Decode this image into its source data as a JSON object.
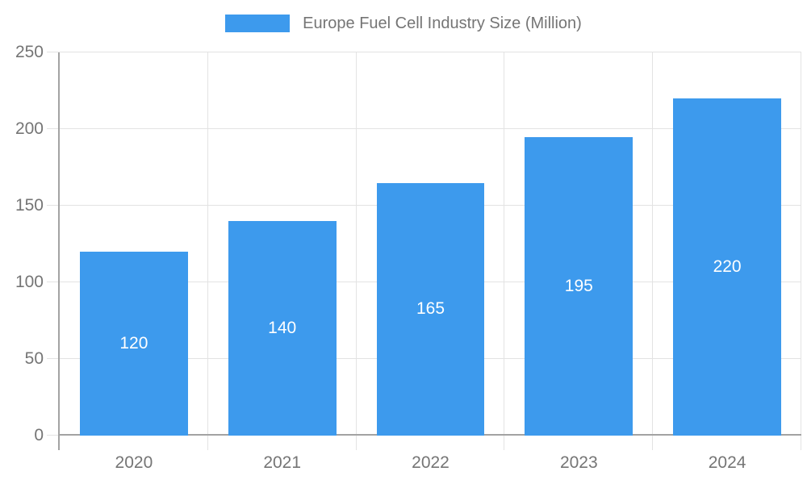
{
  "legend": {
    "label": "Europe Fuel Cell Industry Size (Million)"
  },
  "colors": {
    "bar": "#3d9aed",
    "grid": "#e3e3e3",
    "axis": "#a3a3a3",
    "tick_text": "#757575",
    "value_text": "#ffffff",
    "background": "#ffffff"
  },
  "chart_data": {
    "type": "bar",
    "title": "Europe Fuel Cell Industry Size (Million)",
    "categories": [
      "2020",
      "2021",
      "2022",
      "2023",
      "2024"
    ],
    "series": [
      {
        "name": "Europe Fuel Cell Industry Size (Million)",
        "values": [
          120,
          140,
          165,
          195,
          220
        ]
      }
    ],
    "values": [
      120,
      140,
      165,
      195,
      220
    ],
    "value_labels": [
      "120",
      "140",
      "165",
      "195",
      "220"
    ],
    "xlabel": "",
    "ylabel": "",
    "ylim": [
      0,
      250
    ],
    "yticks": [
      0,
      50,
      100,
      150,
      200,
      250
    ],
    "grid": true,
    "vertical_grid": true,
    "legend_position": "top",
    "value_label_position": "inside-center"
  }
}
